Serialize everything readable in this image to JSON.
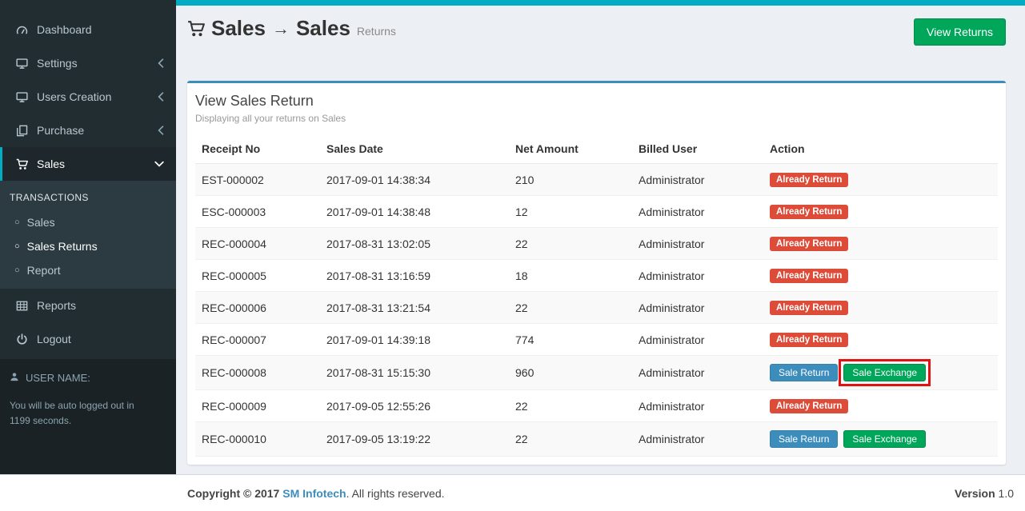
{
  "colors": {
    "sidebar_bg": "#222d32",
    "sidebar_submenu_bg": "#2c3b41",
    "sidebar_active_bg": "#1e282c",
    "sidebar_darker_bg": "#1a2226",
    "sidebar_text": "#b8c7ce",
    "top_accent": "#00acc1",
    "body_bg": "#ecf0f5",
    "primary": "#3c8dbc",
    "primary_border": "#367fa9",
    "success": "#00a65a",
    "success_border": "#008d4c",
    "danger": "#dd4b39",
    "annotation_red": "#e31212"
  },
  "sidebar": {
    "items": [
      {
        "label": "Dashboard",
        "icon": "dashboard-icon",
        "chevron": null,
        "active": false
      },
      {
        "label": "Settings",
        "icon": "desktop-icon",
        "chevron": "left",
        "active": false
      },
      {
        "label": "Users Creation",
        "icon": "desktop-icon",
        "chevron": "left",
        "active": false
      },
      {
        "label": "Purchase",
        "icon": "copy-icon",
        "chevron": "left",
        "active": false
      },
      {
        "label": "Sales",
        "icon": "cart-icon",
        "chevron": "down",
        "active": true
      }
    ],
    "submenu_header": "TRANSACTIONS",
    "submenu": [
      {
        "label": "Sales",
        "active": false
      },
      {
        "label": "Sales Returns",
        "active": true
      },
      {
        "label": "Report",
        "active": false
      }
    ],
    "bottom_items": [
      {
        "label": "Reports",
        "icon": "table-icon"
      },
      {
        "label": "Logout",
        "icon": "power-icon"
      }
    ],
    "user_label": "USER NAME:",
    "auto_logout_notice": "You will be auto logged out in 1199 seconds.",
    "circle_glyph": "○"
  },
  "header": {
    "section_title": "Sales",
    "arrow_glyph": "→",
    "page_title": "Sales",
    "page_subtitle": "Returns",
    "view_returns_button": "View Returns"
  },
  "panel": {
    "title": "View Sales Return",
    "subtitle": "Displaying all your returns on Sales",
    "table": {
      "columns": [
        "Receipt No",
        "Sales Date",
        "Net Amount",
        "Billed User",
        "Action"
      ],
      "rows": [
        {
          "receipt": "EST-000002",
          "date": "2017-09-01 14:38:34",
          "amount": "210",
          "user": "Administrator",
          "actions": [
            "already_return"
          ]
        },
        {
          "receipt": "ESC-000003",
          "date": "2017-09-01 14:38:48",
          "amount": "12",
          "user": "Administrator",
          "actions": [
            "already_return"
          ]
        },
        {
          "receipt": "REC-000004",
          "date": "2017-08-31 13:02:05",
          "amount": "22",
          "user": "Administrator",
          "actions": [
            "already_return"
          ]
        },
        {
          "receipt": "REC-000005",
          "date": "2017-08-31 13:16:59",
          "amount": "18",
          "user": "Administrator",
          "actions": [
            "already_return"
          ]
        },
        {
          "receipt": "REC-000006",
          "date": "2017-08-31 13:21:54",
          "amount": "22",
          "user": "Administrator",
          "actions": [
            "already_return"
          ]
        },
        {
          "receipt": "REC-000007",
          "date": "2017-09-01 14:39:18",
          "amount": "774",
          "user": "Administrator",
          "actions": [
            "already_return"
          ]
        },
        {
          "receipt": "REC-000008",
          "date": "2017-08-31 15:15:30",
          "amount": "960",
          "user": "Administrator",
          "actions": [
            "sale_return",
            "sale_exchange"
          ],
          "highlighted_action": "sale_exchange"
        },
        {
          "receipt": "REC-000009",
          "date": "2017-09-05 12:55:26",
          "amount": "22",
          "user": "Administrator",
          "actions": [
            "already_return"
          ]
        },
        {
          "receipt": "REC-000010",
          "date": "2017-09-05 13:19:22",
          "amount": "22",
          "user": "Administrator",
          "actions": [
            "sale_return",
            "sale_exchange"
          ]
        }
      ]
    }
  },
  "labels": {
    "already_return": "Already Return",
    "sale_return": "Sale Return",
    "sale_exchange": "Sale Exchange"
  },
  "footer": {
    "copyright_prefix": "Copyright © 2017",
    "company": "SM Infotech",
    "rights_text": ". All rights reserved.",
    "version_label": "Version",
    "version_value": "1.0"
  }
}
